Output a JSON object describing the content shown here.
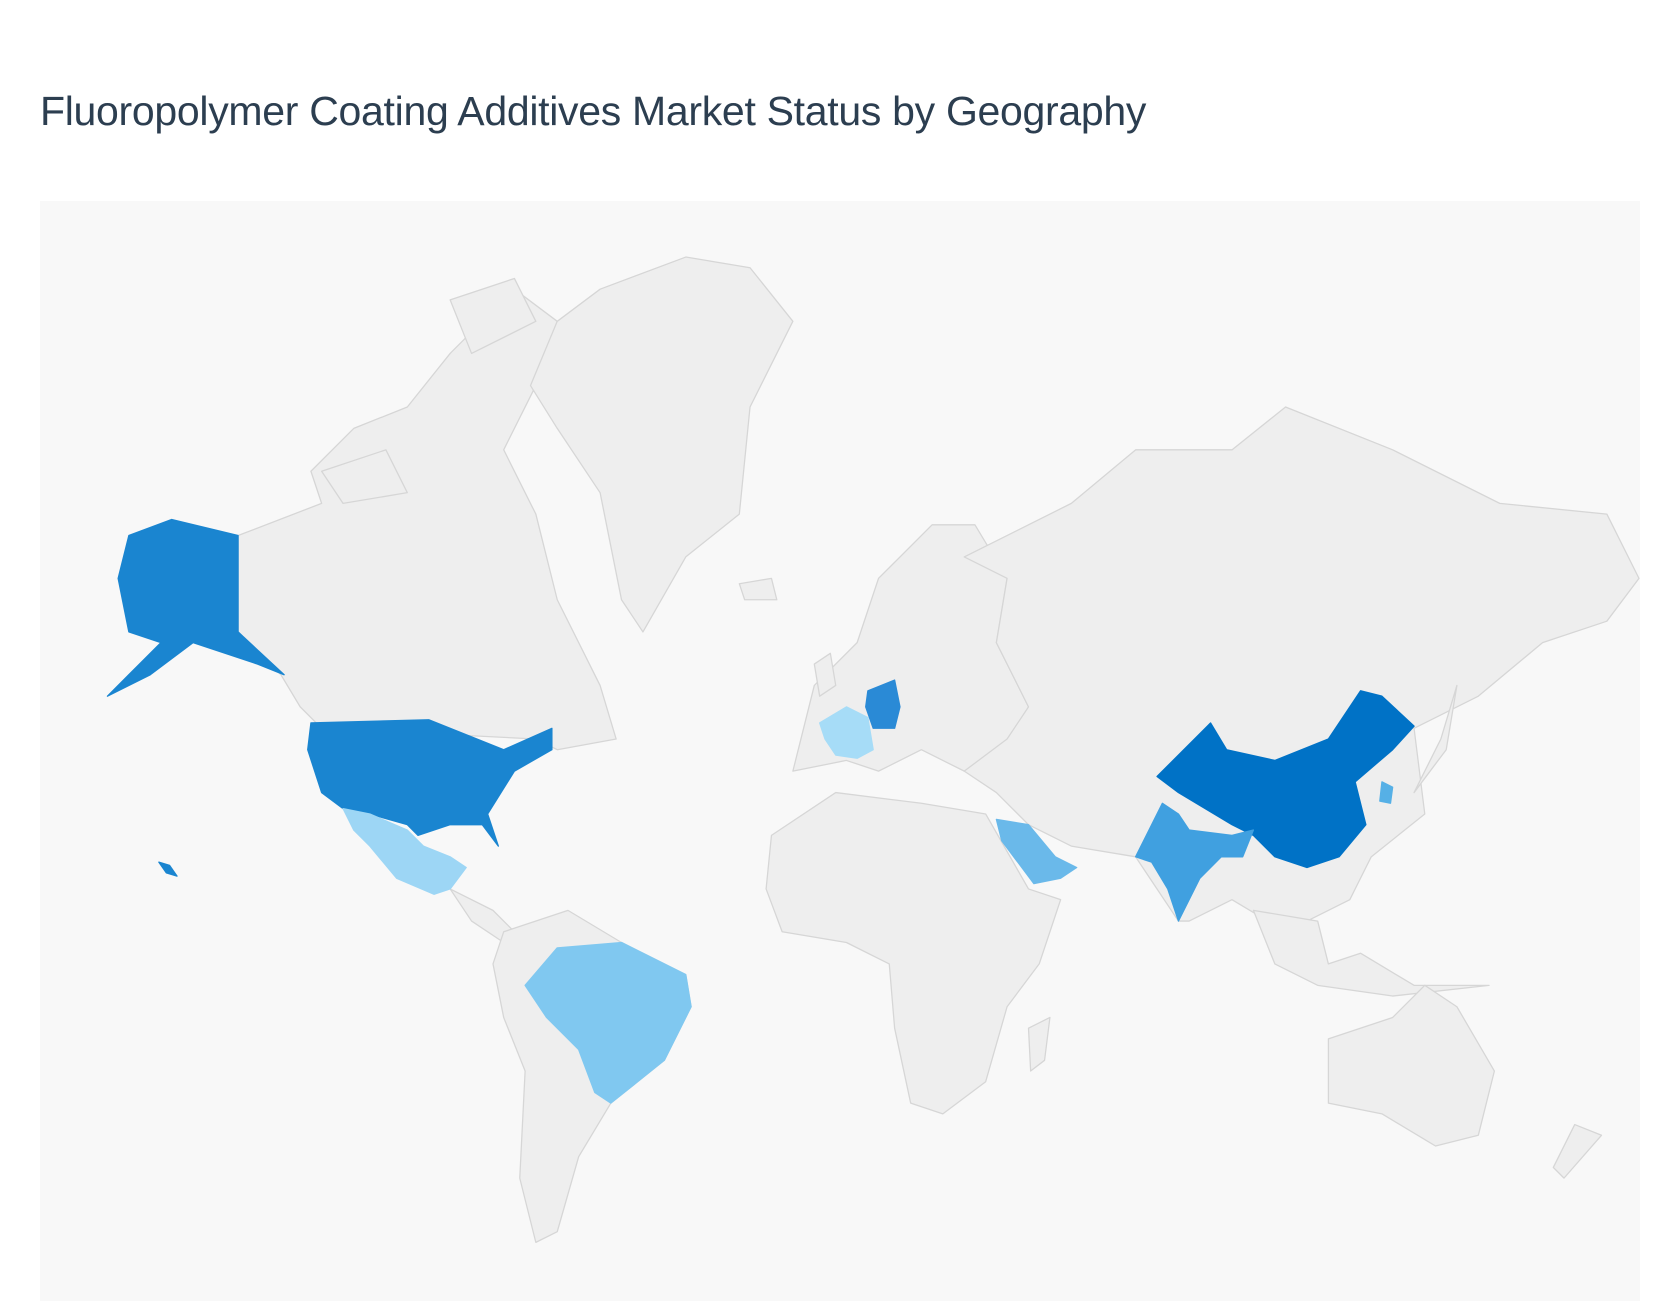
{
  "title": "Fluoropolymer Coating Additives Market Status by Geography",
  "chart_data": {
    "type": "choropleth",
    "title": "Fluoropolymer Coating Additives Market Status by Geography",
    "projection": "mercator world",
    "legend": "none",
    "background_color": "#f8f8f8",
    "default_region_color": "#eeeeee",
    "border_color": "#d6d6d6",
    "highlighted_regions": [
      {
        "region": "China",
        "color": "#0072c6"
      },
      {
        "region": "United States",
        "color": "#1a85d0"
      },
      {
        "region": "Germany",
        "color": "#2a8ad6"
      },
      {
        "region": "India",
        "color": "#40a0e0"
      },
      {
        "region": "South Korea",
        "color": "#56b0e6"
      },
      {
        "region": "Saudi Arabia",
        "color": "#6ab9ea"
      },
      {
        "region": "Brazil",
        "color": "#80c8f0"
      },
      {
        "region": "Mexico",
        "color": "#9dd6f5"
      },
      {
        "region": "France",
        "color": "#a6dcf7"
      }
    ]
  }
}
